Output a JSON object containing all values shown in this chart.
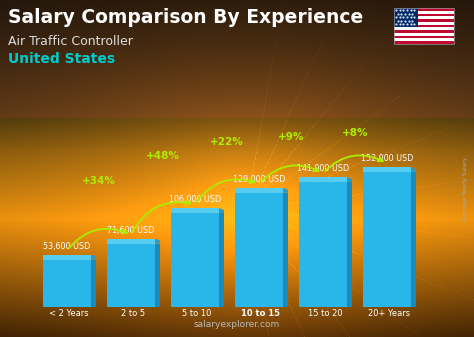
{
  "title": "Salary Comparison By Experience",
  "subtitle": "Air Traffic Controller",
  "country": "United States",
  "categories": [
    "< 2 Years",
    "2 to 5",
    "5 to 10",
    "10 to 15",
    "15 to 20",
    "20+ Years"
  ],
  "values": [
    53600,
    71600,
    106000,
    129000,
    141000,
    152000
  ],
  "labels": [
    "53,600 USD",
    "71,600 USD",
    "106,000 USD",
    "129,000 USD",
    "141,000 USD",
    "152,000 USD"
  ],
  "pct_changes": [
    "+34%",
    "+48%",
    "+22%",
    "+9%",
    "+8%"
  ],
  "bar_color": "#29b6e8",
  "bar_highlight": "#55ccf0",
  "bar_shadow": "#1a8ab8",
  "text_color_white": "#ffffff",
  "text_color_green": "#aaee00",
  "text_color_cyan": "#00cccc",
  "footer": "salaryexplorer.com",
  "max_val": 175000,
  "flag_stripes": [
    "#BF0A30",
    "#FFFFFF"
  ],
  "flag_blue": "#002868"
}
